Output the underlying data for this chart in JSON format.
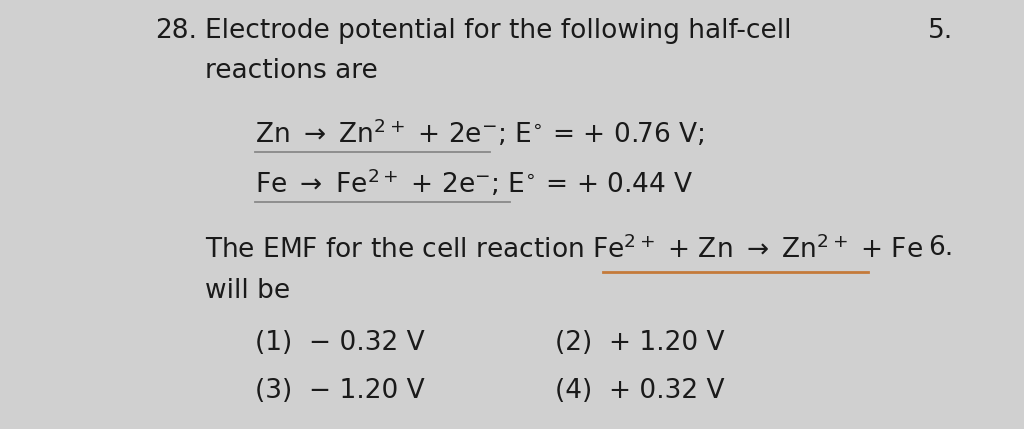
{
  "bg_color": "#d0d0d0",
  "text_color": "#1a1a1a",
  "q_num": "28.",
  "side5": "5.",
  "side6": "6.",
  "font_size": 19,
  "font_size_small": 16
}
